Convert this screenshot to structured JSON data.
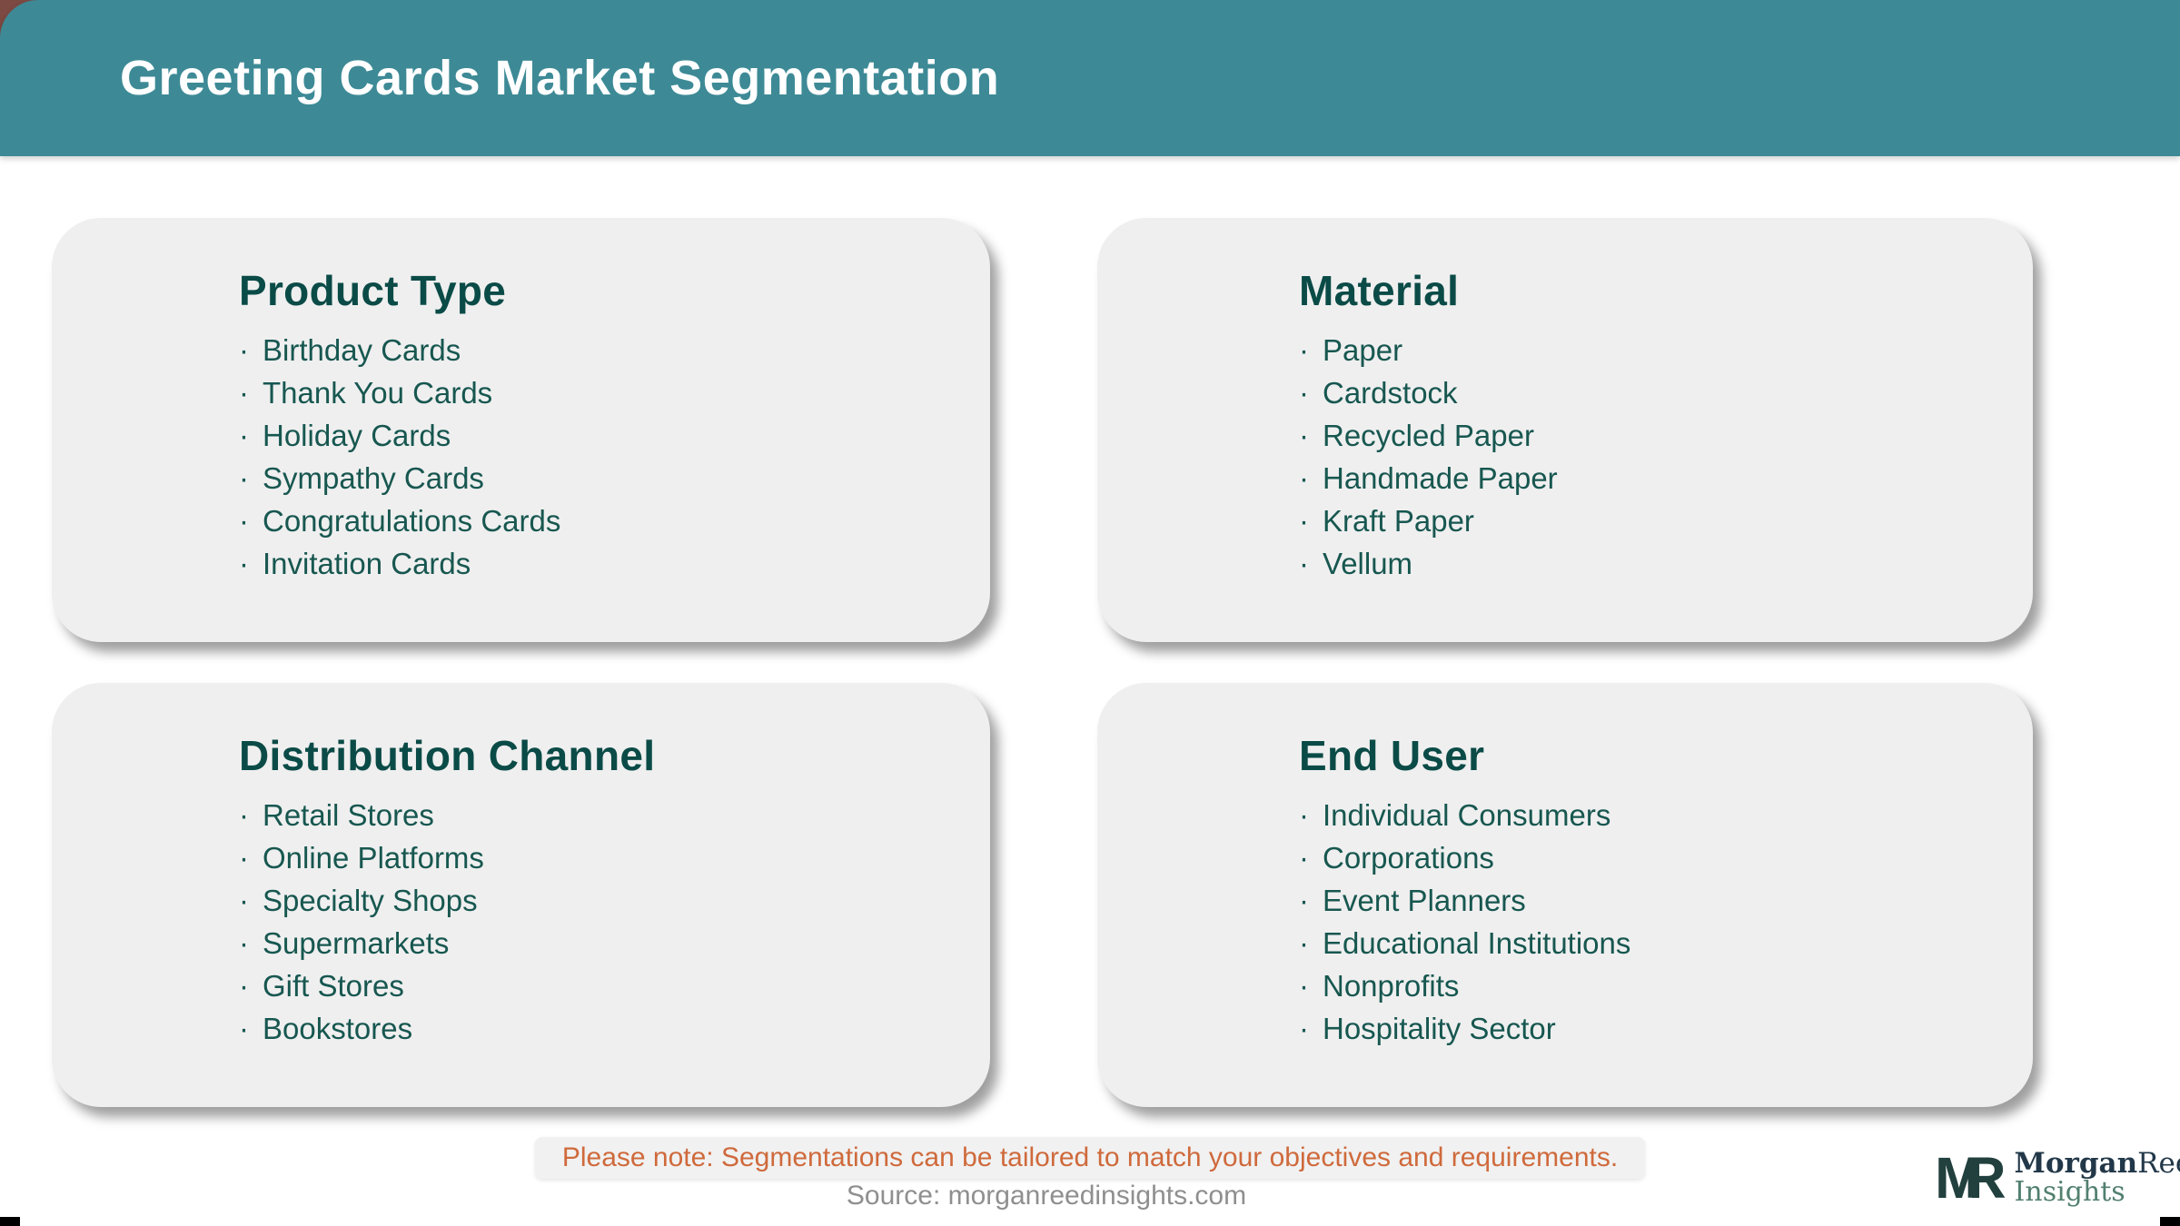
{
  "header": {
    "title": "Greeting Cards Market Segmentation"
  },
  "segments": [
    {
      "title": "Product Type",
      "items": [
        "Birthday Cards",
        "Thank You Cards",
        "Holiday Cards",
        "Sympathy Cards",
        "Congratulations Cards",
        "Invitation Cards"
      ]
    },
    {
      "title": "Material",
      "items": [
        "Paper",
        "Cardstock",
        "Recycled Paper",
        "Handmade Paper",
        "Kraft Paper",
        "Vellum"
      ]
    },
    {
      "title": "Distribution Channel",
      "items": [
        "Retail Stores",
        "Online Platforms",
        "Specialty Shops",
        "Supermarkets",
        "Gift Stores",
        "Bookstores"
      ]
    },
    {
      "title": "End User",
      "items": [
        "Individual Consumers",
        "Corporations",
        "Event Planners",
        "Educational Institutions",
        "Nonprofits",
        "Hospitality Sector"
      ]
    }
  ],
  "note": {
    "text": "Please note: Segmentations can be tailored to match your objectives and requirements."
  },
  "source": {
    "text": "Source: morganreedinsights.com"
  },
  "logo": {
    "monogram_m": "M",
    "monogram_r": "R",
    "name_part1": "Morgan",
    "name_part2": "Reed",
    "tagline": "Insights"
  },
  "colors": {
    "header_bg": "#3D8A96",
    "heading_text": "#0B4B47",
    "item_text": "#175750",
    "card_bg": "#EFEFEF",
    "note_text": "#CF6A3C",
    "note_bg": "#F1F1F1",
    "source_text": "#8F8F8F",
    "logo_primary": "#21403E",
    "logo_name": "#223849",
    "logo_accent": "#52806F",
    "corner_accent": "#7D4A43"
  }
}
